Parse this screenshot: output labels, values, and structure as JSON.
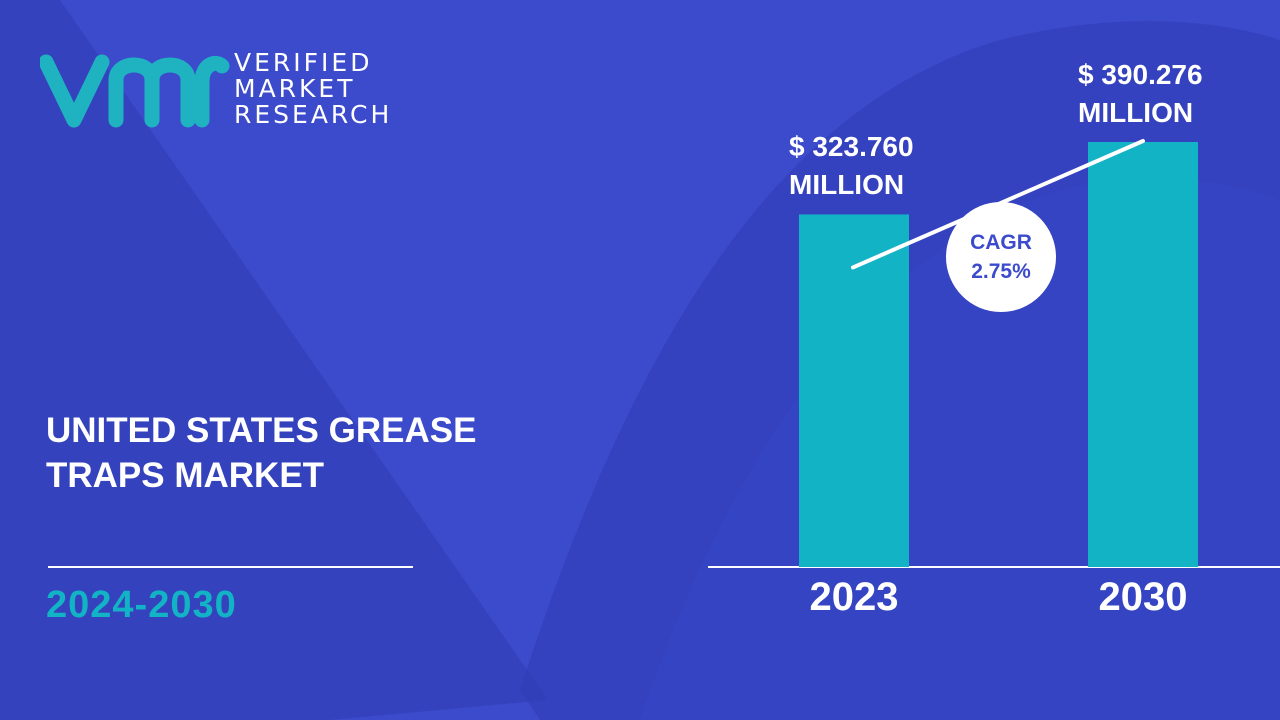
{
  "logo": {
    "line1": "VERIFIED",
    "line2": "MARKET",
    "line3": "RESEARCH",
    "colors": {
      "teal": "#1fb3c2",
      "white": "#ffffff"
    }
  },
  "title": {
    "line1": "UNITED STATES GREASE",
    "line2": "TRAPS MARKET"
  },
  "period": "2024-2030",
  "cagr": {
    "label": "CAGR",
    "value": "2.75%"
  },
  "colors": {
    "background": "#3c4bcc",
    "bar": "#13b3c6",
    "accent": "#13b3c6",
    "text": "#ffffff"
  },
  "chart_data": {
    "type": "bar",
    "categories": [
      "2023",
      "2030"
    ],
    "values": [
      323.76,
      390.276
    ],
    "value_labels": [
      {
        "amount": "$ 323.760",
        "unit": "MILLION"
      },
      {
        "amount": "$ 390.276",
        "unit": "MILLION"
      }
    ],
    "title": "",
    "xlabel": "",
    "ylabel": "",
    "grid": false,
    "trend_line": true
  }
}
